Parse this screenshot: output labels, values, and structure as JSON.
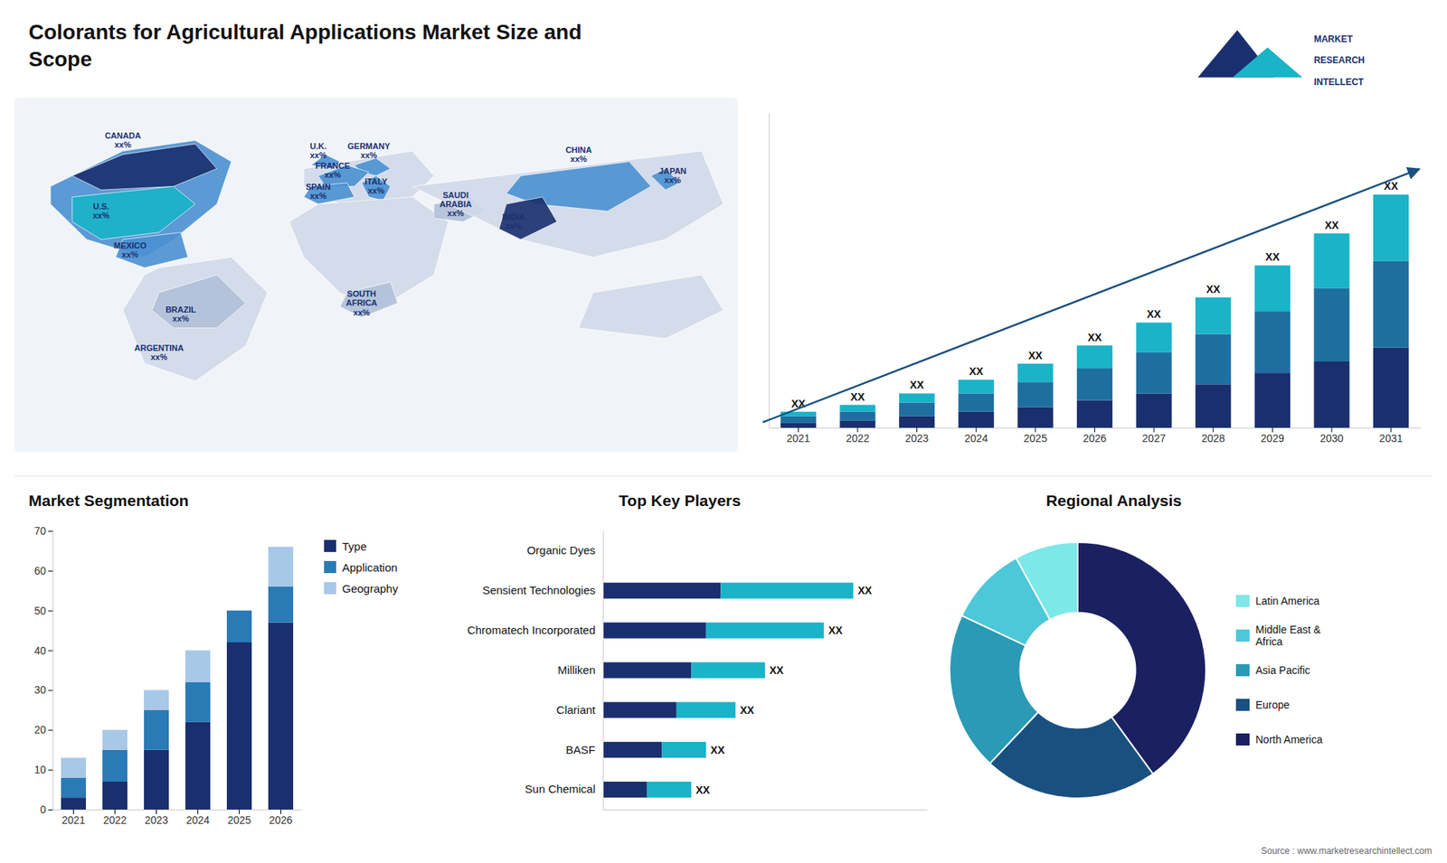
{
  "title": "Colorants for Agricultural Applications Market Size and\nScope",
  "annotations": [
    "MARKET",
    "RESEARCH",
    "INTELLECT",
    "Source : www.marketresearchintellect.com"
  ],
  "chart_data": [
    {
      "type": "map",
      "annotations": [
        "CANADA\nxx%",
        "U.S.\nxx%",
        "MEXICO\nxx%",
        "BRAZIL\nxx%",
        "ARGENTINA\nxx%",
        "U.K.\nxx%",
        "FRANCE\nxx%",
        "SPAIN\nxx%",
        "GERMANY\nxx%",
        "ITALY\nxx%",
        "SAUDI\nARABIA\nxx%",
        "SOUTH\nAFRICA\nxx%",
        "CHINA\nxx%",
        "INDIA\nxx%",
        "JAPAN\nxx%"
      ]
    },
    {
      "type": "bar",
      "stacked": true,
      "categories": [
        "2021",
        "2022",
        "2023",
        "2024",
        "2025",
        "2026",
        "2027",
        "2028",
        "2029",
        "2030",
        "2031"
      ],
      "series": [
        {
          "color": "#1a2f6e",
          "values": [
            2,
            3,
            5,
            7,
            9,
            12,
            15,
            19,
            24,
            29,
            35
          ]
        },
        {
          "color": "#1e6fa0",
          "values": [
            3,
            4,
            6,
            8,
            11,
            14,
            18,
            22,
            27,
            32,
            38
          ]
        },
        {
          "color": "#1ab3c8",
          "values": [
            2,
            3,
            4,
            6,
            8,
            10,
            13,
            16,
            20,
            24,
            29
          ]
        }
      ],
      "annotations": [
        "XX",
        "XX",
        "XX",
        "XX",
        "XX",
        "XX",
        "XX",
        "XX",
        "XX",
        "XX",
        "XX"
      ],
      "ylim": [
        0,
        137.7
      ],
      "grid": false,
      "tick_labels": "x"
    },
    {
      "type": "bar",
      "title": "Market Segmentation",
      "stacked": true,
      "categories": [
        "2021",
        "2022",
        "2023",
        "2024",
        "2025",
        "2026"
      ],
      "series": [
        {
          "name": "Type",
          "color": "#1a2f6e",
          "values": [
            3,
            7,
            15,
            22,
            42,
            47
          ]
        },
        {
          "name": "Application",
          "color": "#2a7ab5",
          "values": [
            5,
            8,
            10,
            10,
            8,
            9
          ]
        },
        {
          "name": "Geography",
          "color": "#a8c8e8",
          "values": [
            5,
            5,
            5,
            8,
            0,
            0
          ]
        },
        {
          "color": "#a8c8e8",
          "values": [
            0,
            0,
            0,
            0,
            0,
            10
          ]
        }
      ],
      "ylim": [
        0,
        70
      ],
      "yticks": [
        0,
        10,
        20,
        30,
        40,
        50,
        60,
        70
      ],
      "grid": false,
      "legend": "right"
    },
    {
      "type": "bar",
      "title": "Top Key Players",
      "orientation": "horizontal",
      "stacked": true,
      "categories": [
        "Organic Dyes",
        "Sensient Technologies",
        "Chromatech Incorporated",
        "Milliken",
        "Clariant",
        "BASF",
        "Sun Chemical"
      ],
      "series": [
        {
          "color": "#1a2f6e",
          "values": [
            0,
            8,
            7,
            6,
            5,
            4,
            3
          ]
        },
        {
          "color": "#1ab3c8",
          "values": [
            0,
            9,
            8,
            5,
            4,
            3,
            3
          ]
        }
      ],
      "annotations": [
        "XX",
        "XX",
        "XX",
        "XX",
        "XX",
        "XX"
      ],
      "xlim": [
        0,
        22
      ],
      "grid": false,
      "tick_labels": "y"
    },
    {
      "type": "donut",
      "title": "Regional Analysis",
      "categories": [
        "Latin America",
        "Middle East &\nAfrica",
        "Asia Pacific",
        "Europe",
        "North America"
      ],
      "values": [
        8,
        10,
        20,
        22,
        40
      ],
      "colors": [
        "#7de8e8",
        "#4dc8d8",
        "#2a9ab5",
        "#1a5080",
        "#1a2060"
      ],
      "legend": "right"
    }
  ]
}
